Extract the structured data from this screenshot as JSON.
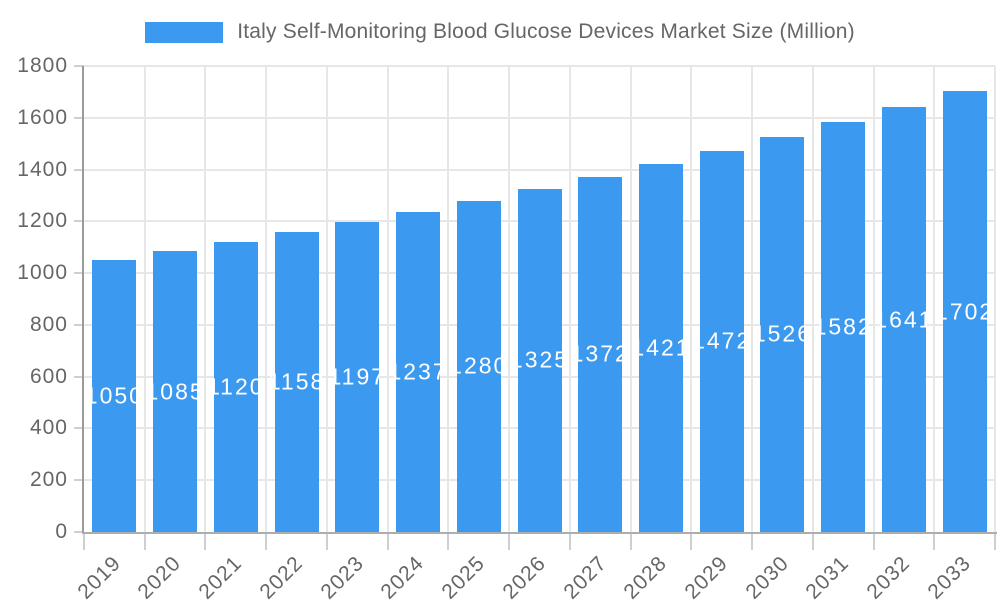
{
  "chart_data": {
    "type": "bar",
    "title": "Italy Self-Monitoring Blood Glucose Devices Market Size (Million)",
    "legend_position": "top",
    "categories": [
      "2019",
      "2020",
      "2021",
      "2022",
      "2023",
      "2024",
      "2025",
      "2026",
      "2027",
      "2028",
      "2029",
      "2030",
      "2031",
      "2032",
      "2033"
    ],
    "values": [
      1050,
      1085,
      1120,
      1158,
      1197,
      1237,
      1280,
      1325,
      1372,
      1421,
      1472,
      1526,
      1582,
      1641,
      1702
    ],
    "xlabel": "",
    "ylabel": "",
    "ylim": [
      0,
      1800
    ],
    "ytick_step": 200,
    "yticks": [
      0,
      200,
      400,
      600,
      800,
      1000,
      1200,
      1400,
      1600,
      1800
    ],
    "grid": true,
    "value_labels_shown": true,
    "colors": {
      "bar": "#3C99F0",
      "grid": "#E7E7E7",
      "y_axis_line": "#9B9B9B",
      "x_axis_line": "#ADADAD",
      "tick": "#CFCFCF",
      "axis_text": "#666666",
      "value_label_text": "#FFFFFF",
      "background": "#FFFFFF"
    }
  }
}
